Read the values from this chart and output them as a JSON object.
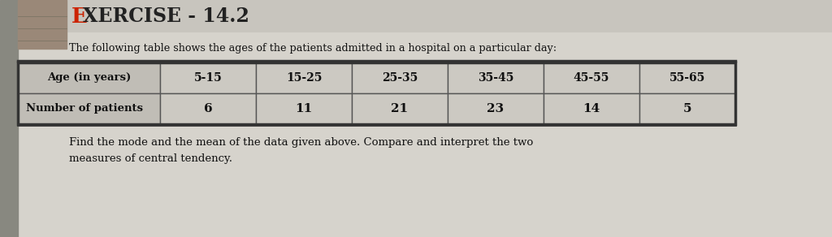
{
  "title_red": "E",
  "title_rest": "XERCISE - 14.2",
  "description": "The following table shows the ages of the patients admitted in a hospital on a particular day:",
  "row1_label": "Age (in years)",
  "row2_label": "Number of patients",
  "age_groups": [
    "5-15",
    "15-25",
    "25-35",
    "35-45",
    "45-55",
    "55-65"
  ],
  "patients": [
    "6",
    "11",
    "21",
    "23",
    "14",
    "5"
  ],
  "footer_line1": "Find the mode and the mean of the data given above. Compare and interpret the two",
  "footer_line2": "measures of central tendency.",
  "page_bg": "#d6d3cc",
  "title_bar_bg": "#c8c5be",
  "table_label_bg": "#c0bdb6",
  "table_cell_bg": "#ccc9c2",
  "table_border": "#555555",
  "spine_color": "#888880",
  "photo_color": "#9a8878",
  "title_red_color": "#cc2200",
  "title_dark_color": "#222222",
  "text_color": "#111111"
}
